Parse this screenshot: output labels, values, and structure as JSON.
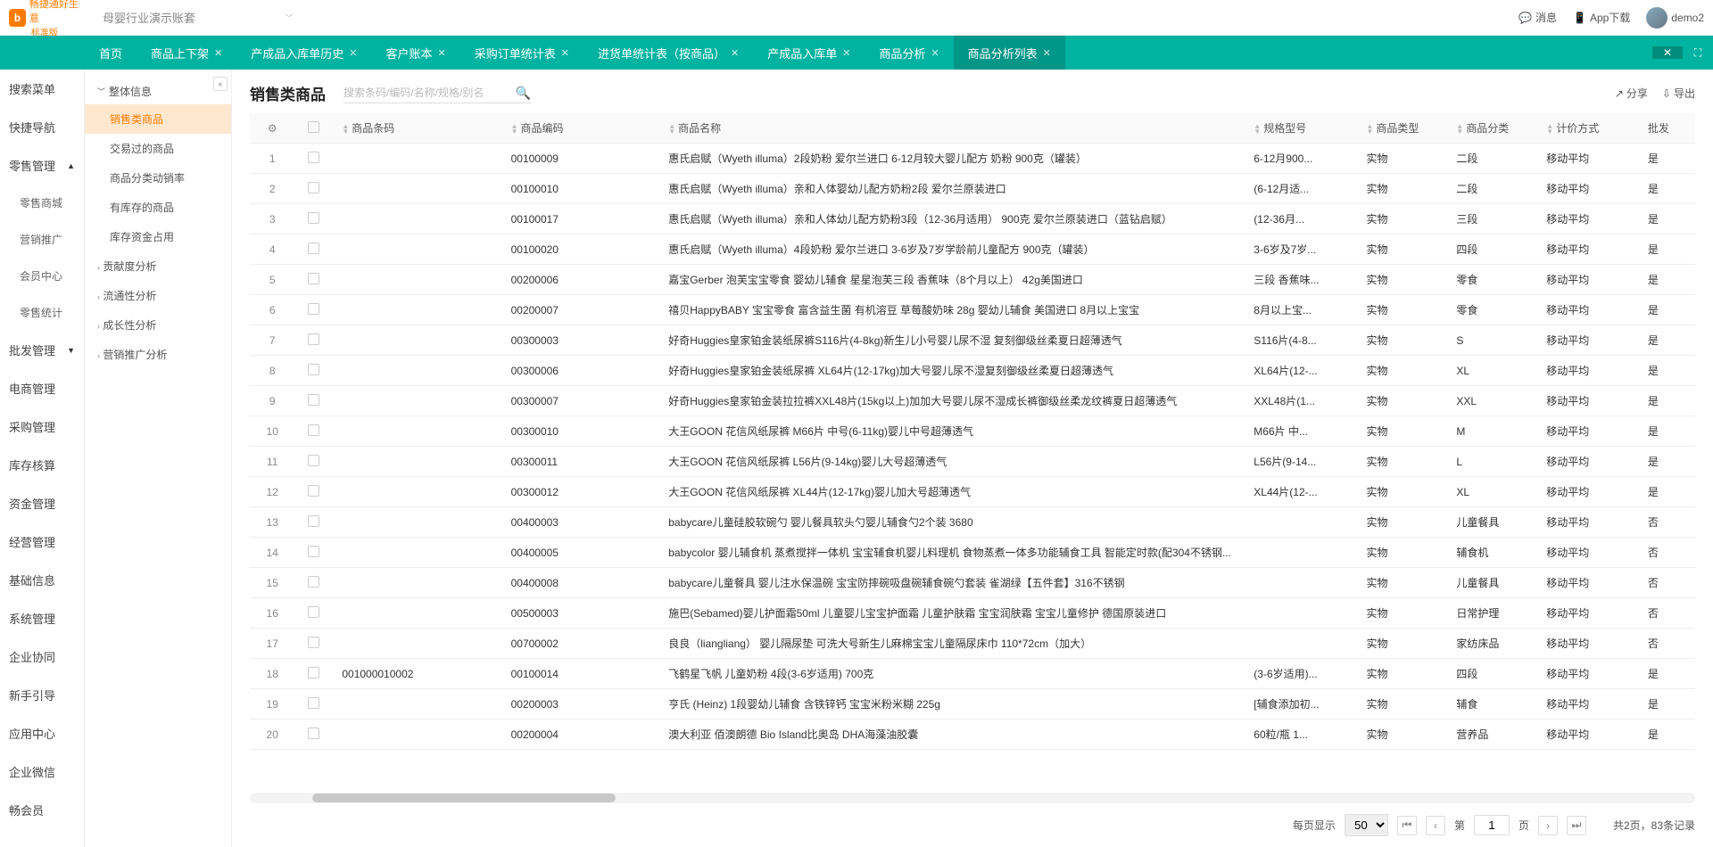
{
  "header": {
    "logo_text": "畅捷通好生意",
    "logo_sub": "标准版",
    "account_label": "母婴行业演示账套",
    "msg": "消息",
    "download": "App下载",
    "user": "demo2"
  },
  "tabs": [
    {
      "label": "首页",
      "closable": false
    },
    {
      "label": "商品上下架",
      "closable": true
    },
    {
      "label": "产成品入库单历史",
      "closable": true
    },
    {
      "label": "客户账本",
      "closable": true
    },
    {
      "label": "采购订单统计表",
      "closable": true
    },
    {
      "label": "进货单统计表（按商品）",
      "closable": true
    },
    {
      "label": "产成品入库单",
      "closable": true
    },
    {
      "label": "商品分析",
      "closable": true
    },
    {
      "label": "商品分析列表",
      "closable": true,
      "active": true
    }
  ],
  "leftnav": [
    {
      "label": "搜索菜单"
    },
    {
      "label": "快捷导航"
    },
    {
      "label": "零售管理",
      "expanded": true,
      "children": [
        "零售商城",
        "营销推广",
        "会员中心",
        "零售统计"
      ]
    },
    {
      "label": "批发管理",
      "arrow": true
    },
    {
      "label": "电商管理"
    },
    {
      "label": "采购管理"
    },
    {
      "label": "库存核算"
    },
    {
      "label": "资金管理"
    },
    {
      "label": "经营管理"
    },
    {
      "label": "基础信息"
    },
    {
      "label": "系统管理"
    },
    {
      "label": "企业协同"
    },
    {
      "label": "新手引导"
    },
    {
      "label": "应用中心"
    },
    {
      "label": "企业微信"
    },
    {
      "label": "畅会员"
    }
  ],
  "side2": {
    "header": "整体信息",
    "items": [
      {
        "label": "销售类商品",
        "active": true
      },
      {
        "label": "交易过的商品"
      },
      {
        "label": "商品分类动销率"
      },
      {
        "label": "有库存的商品"
      },
      {
        "label": "库存资金占用"
      },
      {
        "label": "贡献度分析",
        "expandable": true
      },
      {
        "label": "流通性分析",
        "expandable": true
      },
      {
        "label": "成长性分析",
        "expandable": true
      },
      {
        "label": "营销推广分析",
        "expandable": true
      }
    ]
  },
  "page": {
    "title": "销售类商品",
    "search_placeholder": "搜索条码/编码/名称/规格/别名",
    "share": "分享",
    "export": "导出"
  },
  "columns": [
    "商品条码",
    "商品编码",
    "商品名称",
    "规格型号",
    "商品类型",
    "商品分类",
    "计价方式",
    "批发"
  ],
  "rows": [
    {
      "idx": 1,
      "barcode": "",
      "code": "00100009",
      "name": "惠氏启赋（Wyeth illuma）2段奶粉 爱尔兰进口 6-12月较大婴儿配方 奶粉 900克（罐装）",
      "spec": "6-12月900...",
      "type": "实物",
      "cat": "二段",
      "price": "移动平均",
      "bulk": "是"
    },
    {
      "idx": 2,
      "barcode": "",
      "code": "00100010",
      "name": "惠氏启赋（Wyeth illuma）亲和人体婴幼儿配方奶粉2段 爱尔兰原装进口",
      "spec": "(6-12月适...",
      "type": "实物",
      "cat": "二段",
      "price": "移动平均",
      "bulk": "是"
    },
    {
      "idx": 3,
      "barcode": "",
      "code": "00100017",
      "name": "惠氏启赋（Wyeth illuma）亲和人体幼儿配方奶粉3段（12-36月适用） 900克 爱尔兰原装进口（蓝钻启赋）",
      "spec": "(12-36月...",
      "type": "实物",
      "cat": "三段",
      "price": "移动平均",
      "bulk": "是"
    },
    {
      "idx": 4,
      "barcode": "",
      "code": "00100020",
      "name": "惠氏启赋（Wyeth illuma）4段奶粉 爱尔兰进口 3-6岁及7岁学龄前儿童配方 900克（罐装）",
      "spec": "3-6岁及7岁...",
      "type": "实物",
      "cat": "四段",
      "price": "移动平均",
      "bulk": "是"
    },
    {
      "idx": 5,
      "barcode": "",
      "code": "00200006",
      "name": "嘉宝Gerber 泡芙宝宝零食 婴幼儿辅食 星星泡芙三段 香蕉味（8个月以上） 42g美国进口",
      "spec": "三段 香蕉味...",
      "type": "实物",
      "cat": "零食",
      "price": "移动平均",
      "bulk": "是"
    },
    {
      "idx": 6,
      "barcode": "",
      "code": "00200007",
      "name": "禧贝HappyBABY 宝宝零食 富含益生菌 有机溶豆 草莓酸奶味 28g 婴幼儿辅食 美国进口 8月以上宝宝",
      "spec": "8月以上宝...",
      "type": "实物",
      "cat": "零食",
      "price": "移动平均",
      "bulk": "是"
    },
    {
      "idx": 7,
      "barcode": "",
      "code": "00300003",
      "name": "好奇Huggies皇家铂金装纸尿裤S116片(4-8kg)新生儿小号婴儿尿不湿 复刻御级丝柔夏日超薄透气",
      "spec": "S116片(4-8...",
      "type": "实物",
      "cat": "S",
      "price": "移动平均",
      "bulk": "是"
    },
    {
      "idx": 8,
      "barcode": "",
      "code": "00300006",
      "name": "好奇Huggies皇家铂金装纸尿裤 XL64片(12-17kg)加大号婴儿尿不湿复刻御级丝柔夏日超薄透气",
      "spec": "XL64片(12-...",
      "type": "实物",
      "cat": "XL",
      "price": "移动平均",
      "bulk": "是"
    },
    {
      "idx": 9,
      "barcode": "",
      "code": "00300007",
      "name": "好奇Huggies皇家铂金装拉拉裤XXL48片(15kg以上)加加大号婴儿尿不湿成长裤御级丝柔龙纹裤夏日超薄透气",
      "spec": "XXL48片(1...",
      "type": "实物",
      "cat": "XXL",
      "price": "移动平均",
      "bulk": "是"
    },
    {
      "idx": 10,
      "barcode": "",
      "code": "00300010",
      "name": "大王GOON 花信风纸尿裤 M66片 中号(6-11kg)婴儿中号超薄透气",
      "spec": "M66片 中...",
      "type": "实物",
      "cat": "M",
      "price": "移动平均",
      "bulk": "是"
    },
    {
      "idx": 11,
      "barcode": "",
      "code": "00300011",
      "name": "大王GOON 花信风纸尿裤 L56片(9-14kg)婴儿大号超薄透气",
      "spec": "L56片(9-14...",
      "type": "实物",
      "cat": "L",
      "price": "移动平均",
      "bulk": "是"
    },
    {
      "idx": 12,
      "barcode": "",
      "code": "00300012",
      "name": "大王GOON 花信风纸尿裤 XL44片(12-17kg)婴儿加大号超薄透气",
      "spec": "XL44片(12-...",
      "type": "实物",
      "cat": "XL",
      "price": "移动平均",
      "bulk": "是"
    },
    {
      "idx": 13,
      "barcode": "",
      "code": "00400003",
      "name": "babycare儿童硅胶软碗勺 婴儿餐具软头勺婴儿辅食勺2个装 3680",
      "spec": "",
      "type": "实物",
      "cat": "儿童餐具",
      "price": "移动平均",
      "bulk": "否"
    },
    {
      "idx": 14,
      "barcode": "",
      "code": "00400005",
      "name": "babycolor 婴儿辅食机 蒸煮搅拌一体机 宝宝辅食机婴儿料理机 食物蒸煮一体多功能辅食工具 智能定时款(配304不锈钢...",
      "spec": "",
      "type": "实物",
      "cat": "辅食机",
      "price": "移动平均",
      "bulk": "否"
    },
    {
      "idx": 15,
      "barcode": "",
      "code": "00400008",
      "name": "babycare儿童餐具 婴儿注水保温碗 宝宝防摔碗吸盘碗辅食碗勺套装 雀湖绿【五件套】316不锈钢",
      "spec": "",
      "type": "实物",
      "cat": "儿童餐具",
      "price": "移动平均",
      "bulk": "否"
    },
    {
      "idx": 16,
      "barcode": "",
      "code": "00500003",
      "name": "施巴(Sebamed)婴儿护面霜50ml 儿童婴儿宝宝护面霜 儿童护肤霜 宝宝润肤霜 宝宝儿童修护 德国原装进口",
      "spec": "",
      "type": "实物",
      "cat": "日常护理",
      "price": "移动平均",
      "bulk": "否"
    },
    {
      "idx": 17,
      "barcode": "",
      "code": "00700002",
      "name": "良良（liangliang） 婴儿隔尿垫 可洗大号新生儿麻棉宝宝儿童隔尿床巾 110*72cm（加大）",
      "spec": "",
      "type": "实物",
      "cat": "家纺床品",
      "price": "移动平均",
      "bulk": "否"
    },
    {
      "idx": 18,
      "barcode": "001000010002",
      "code": "00100014",
      "name": "飞鹤星飞帆 儿童奶粉 4段(3-6岁适用) 700克",
      "spec": "(3-6岁适用)...",
      "type": "实物",
      "cat": "四段",
      "price": "移动平均",
      "bulk": "是"
    },
    {
      "idx": 19,
      "barcode": "",
      "code": "00200003",
      "name": "亨氏 (Heinz) 1段婴幼儿辅食 含铁锌钙 宝宝米粉米糊 225g",
      "spec": "[辅食添加初...",
      "type": "实物",
      "cat": "辅食",
      "price": "移动平均",
      "bulk": "是"
    },
    {
      "idx": 20,
      "barcode": "",
      "code": "00200004",
      "name": "澳大利亚 佰澳朗德 Bio Island比奥岛 DHA海藻油胶囊",
      "spec": "60粒/瓶 1...",
      "type": "实物",
      "cat": "营养品",
      "price": "移动平均",
      "bulk": "是"
    }
  ],
  "pager": {
    "per_page_label": "每页显示",
    "per_page": "50",
    "page_label_pre": "第",
    "page": "1",
    "page_label_post": "页",
    "summary": "共2页，83条记录"
  }
}
